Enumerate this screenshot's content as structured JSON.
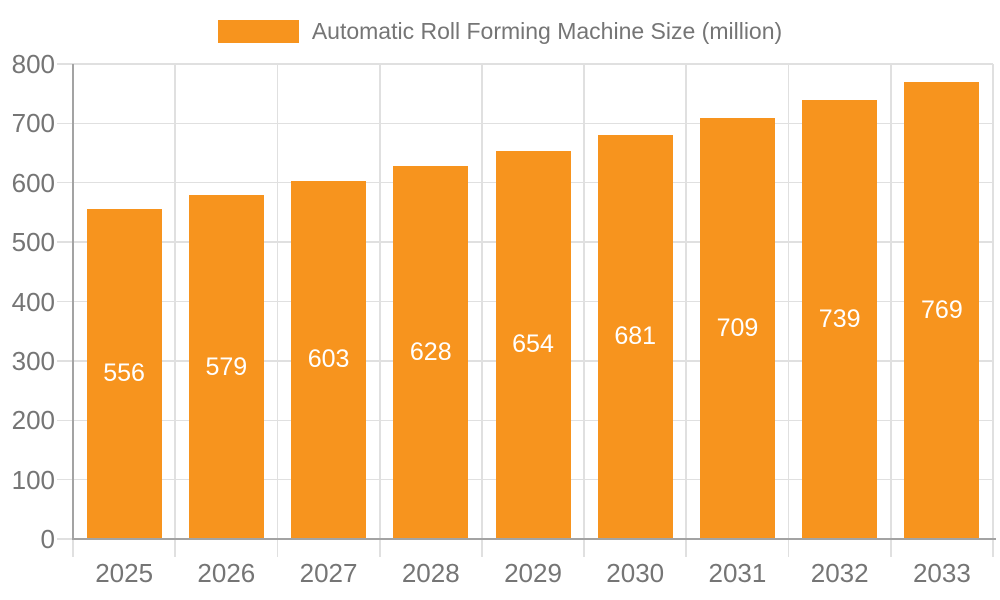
{
  "legend": {
    "label": "Automatic Roll Forming Machine Size (million)"
  },
  "colors": {
    "bar": "#F7941E",
    "axis": "#A3A3A3",
    "grid": "#E0E0E0",
    "text": "#757575",
    "bar_label": "#FFFFFF"
  },
  "chart_data": {
    "type": "bar",
    "title": "Automatic Roll Forming Machine Size (million)",
    "categories": [
      "2025",
      "2026",
      "2027",
      "2028",
      "2029",
      "2030",
      "2031",
      "2032",
      "2033"
    ],
    "values": [
      556,
      579,
      603,
      628,
      654,
      681,
      709,
      739,
      769
    ],
    "xlabel": "",
    "ylabel": "",
    "ylim": [
      0,
      800
    ],
    "y_tick_step": 100,
    "grid": true,
    "bar_labels_visible": true,
    "legend_position": "top-center"
  }
}
